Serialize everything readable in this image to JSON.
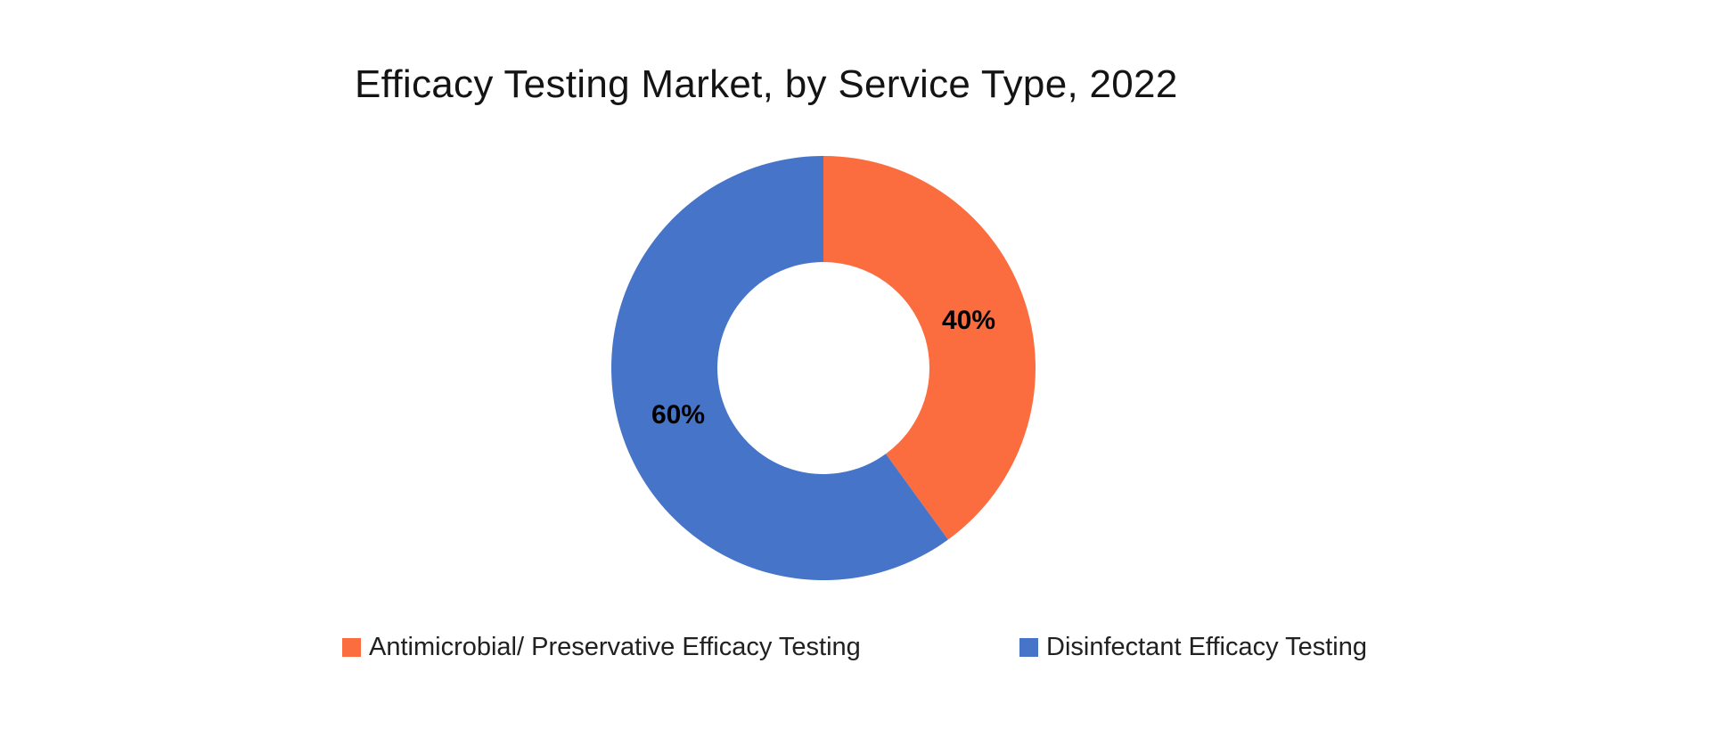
{
  "page": {
    "background_color": "#ffffff"
  },
  "chart_data": {
    "type": "pie",
    "subtype": "donut",
    "title": "Efficacy Testing Market, by Service Type, 2022",
    "donut_hole_ratio": 0.5,
    "start_angle_deg": 0,
    "direction": "clockwise",
    "legend_position": "bottom",
    "data_labels": "percent",
    "label_color": "#000000",
    "title_color": "#141414",
    "slices": [
      {
        "label": "Antimicrobial/ Preservative Efficacy Testing",
        "value": 40,
        "percent_label": "40%",
        "color": "#FB6C3F"
      },
      {
        "label": "Disinfectant Efficacy Testing",
        "value": 60,
        "percent_label": "60%",
        "color": "#4674C8"
      }
    ]
  }
}
